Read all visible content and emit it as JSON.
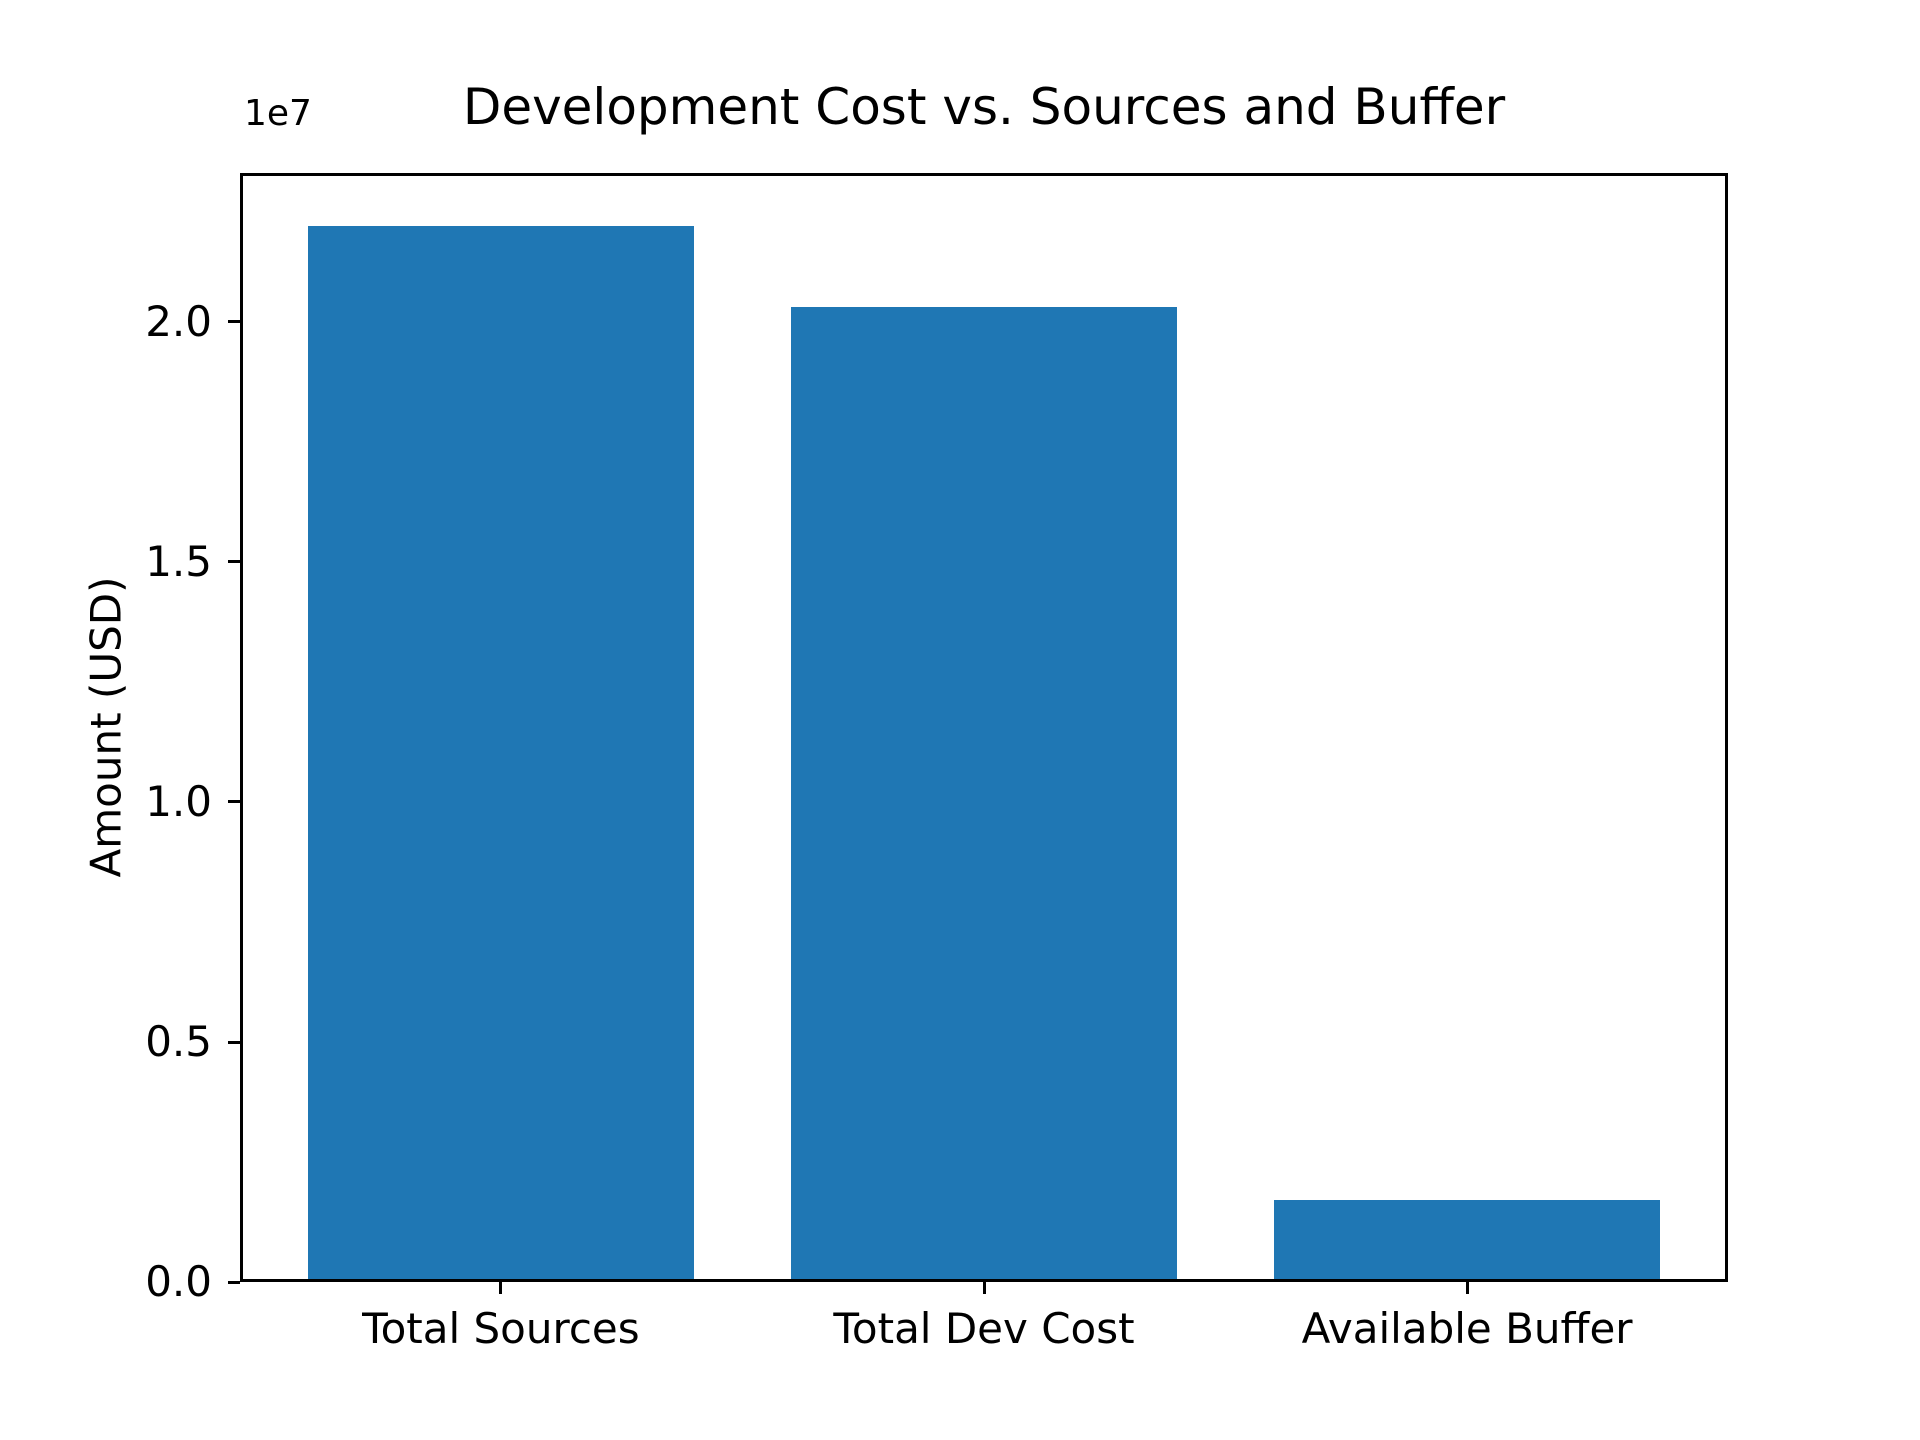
{
  "figure": {
    "background_color": "#ffffff",
    "text_color": "#000000"
  },
  "chart_data": {
    "type": "bar",
    "title": "Development Cost vs. Sources and Buffer",
    "xlabel": "",
    "ylabel": "Amount (USD)",
    "categories": [
      "Total Sources",
      "Total Dev Cost",
      "Available Buffer"
    ],
    "values": [
      22000000,
      20300000,
      1700000
    ],
    "bar_color": "#1f77b4",
    "ylim": [
      0,
      23100000
    ],
    "yticks": [
      0,
      5000000,
      10000000,
      15000000,
      20000000
    ],
    "ytick_labels": [
      "0.0",
      "0.5",
      "1.0",
      "1.5",
      "2.0"
    ],
    "y_offset_text": "1e7",
    "xlim": [
      -0.54,
      2.54
    ],
    "bar_rel_width": 0.8,
    "grid": false,
    "legend_position": null
  }
}
